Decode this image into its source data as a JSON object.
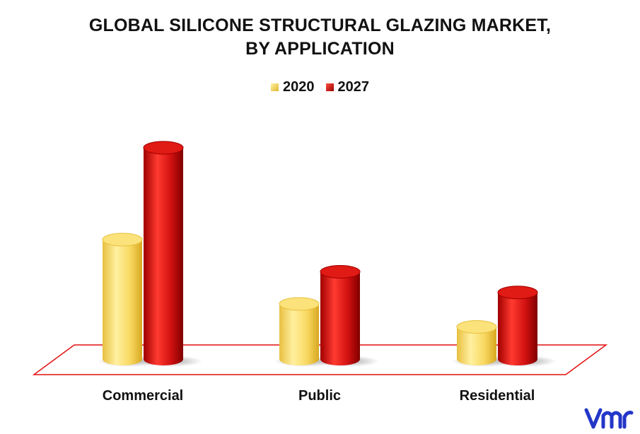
{
  "title_line1": "GLOBAL SILICONE STRUCTURAL GLAZING MARKET,",
  "title_line2": "BY APPLICATION",
  "colors": {
    "2020": "#f5d95e",
    "2027": "#c8100e",
    "floor": "#e01010"
  },
  "logo_text": "vmr",
  "chart_data": {
    "type": "bar",
    "title": "GLOBAL SILICONE STRUCTURAL GLAZING MARKET, BY APPLICATION",
    "xlabel": "",
    "ylabel": "",
    "categories": [
      "Commercial",
      "Public",
      "Residential"
    ],
    "series": [
      {
        "name": "2020",
        "values": [
          5.2,
          2.4,
          1.4
        ]
      },
      {
        "name": "2027",
        "values": [
          9.2,
          3.8,
          2.9
        ]
      }
    ],
    "ylim": [
      0,
      10
    ],
    "legend": "top-center",
    "grid": false
  }
}
